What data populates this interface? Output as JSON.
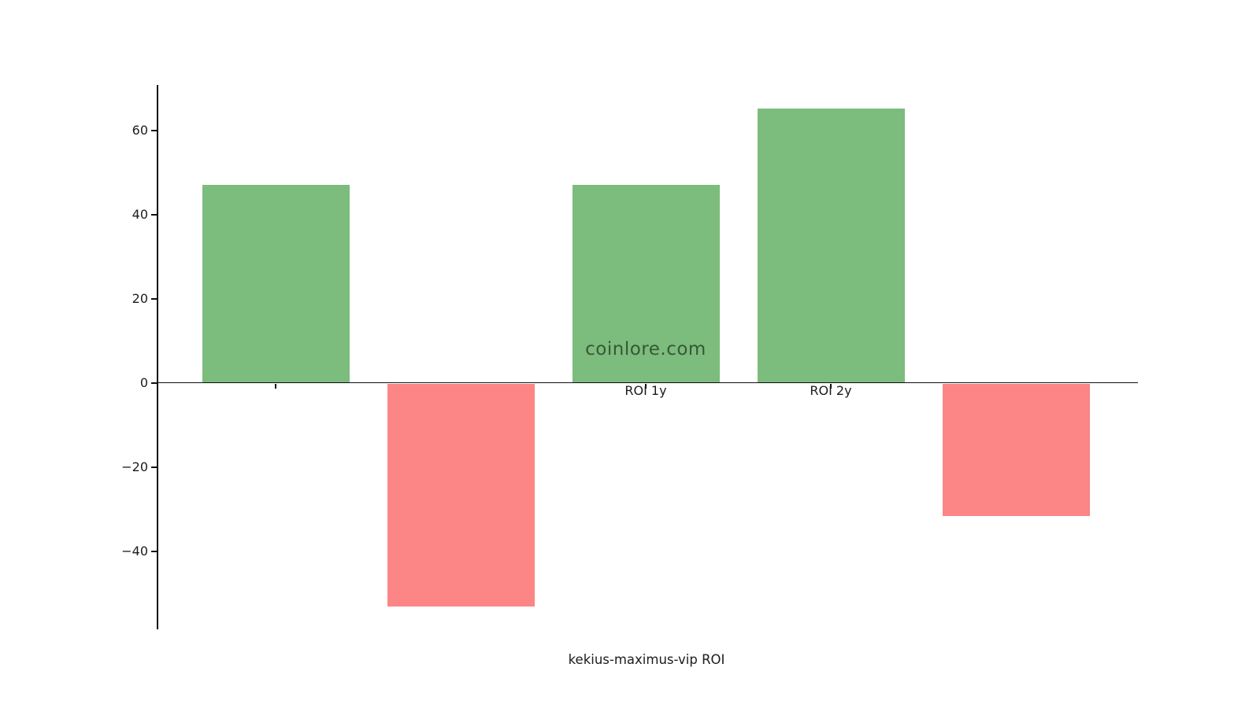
{
  "page": {
    "background": "#ffffff"
  },
  "watermark": {
    "text": "coinlore.com"
  },
  "chart_data": {
    "type": "bar",
    "title": "kekius-maximus-vip ROI",
    "categories": [
      "",
      "",
      "ROI 1y",
      "ROI 2y",
      ""
    ],
    "values": [
      46.9,
      -52.9,
      46.9,
      65.1,
      -31.5
    ],
    "bar_colors": [
      "#7cbc7c",
      "#fc8585",
      "#7cbc7c",
      "#7cbc7c",
      "#fc8585"
    ],
    "positive_color": "#7cbc7c",
    "negative_color": "#fc8585",
    "axis_color": "#0f0f0f",
    "text_color": "#1c1c1c",
    "xlabel": "",
    "ylabel": "",
    "ylim": [
      -58.6,
      70.9
    ],
    "y_ticks": [
      {
        "value": 60,
        "label": "60"
      },
      {
        "value": 40,
        "label": "40"
      },
      {
        "value": 20,
        "label": "20"
      },
      {
        "value": 0,
        "label": "0"
      },
      {
        "value": -20,
        "label": "−20"
      },
      {
        "value": -40,
        "label": "−40"
      }
    ],
    "x_ticks": [
      {
        "bar_index": 0,
        "label": ""
      },
      {
        "bar_index": 2,
        "label": "ROI 1y"
      },
      {
        "bar_index": 3,
        "label": "ROI 2y"
      }
    ],
    "grid": false,
    "legend": "none"
  }
}
